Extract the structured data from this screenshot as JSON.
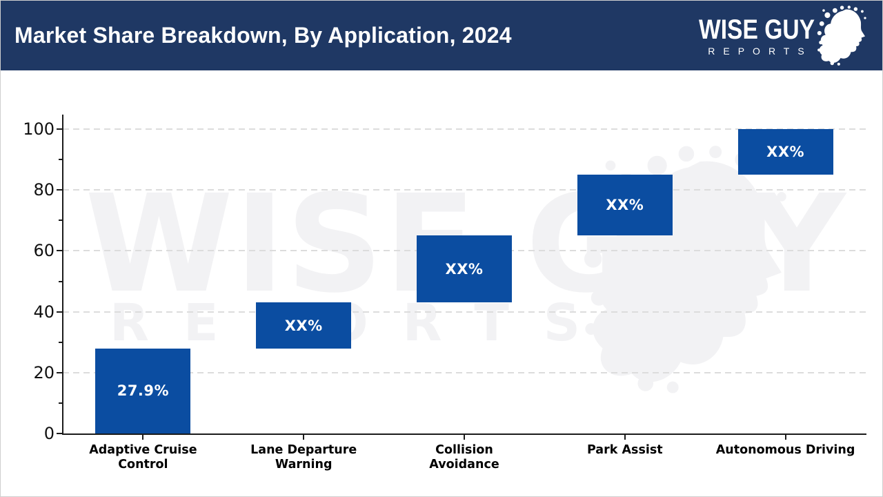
{
  "header": {
    "title": "Market Share Breakdown, By Application, 2024",
    "logo": {
      "primary": "WISE GUY",
      "secondary": "REPORTS"
    }
  },
  "watermark": {
    "primary": "WISE GUY",
    "secondary": "REPORTS",
    "head_icon": "dotted-head-profile"
  },
  "colors": {
    "header_bg": "#1f3864",
    "bar": "#0b4da1",
    "bar_label": "#ffffff",
    "gridline": "#dcdcdc",
    "axis": "#1a1a1a",
    "watermark": "#f2f2f4"
  },
  "chart_data": {
    "type": "bar",
    "subtype": "floating-waterfall",
    "title": "Market Share Breakdown, By Application, 2024",
    "categories": [
      "Adaptive Cruise\nControl",
      "Lane Departure\nWarning",
      "Collision\nAvoidance",
      "Park Assist",
      "Autonomous Driving"
    ],
    "segments": [
      {
        "start": 0,
        "end": 27.9,
        "label": "27.9%"
      },
      {
        "start": 27.9,
        "end": 43,
        "label": "XX%"
      },
      {
        "start": 43,
        "end": 65,
        "label": "XX%"
      },
      {
        "start": 65,
        "end": 85,
        "label": "XX%"
      },
      {
        "start": 85,
        "end": 100,
        "label": "XX%"
      }
    ],
    "xlabel": "",
    "ylabel": "",
    "ylim": [
      0,
      100
    ],
    "yticks": [
      0,
      20,
      40,
      60,
      80,
      100
    ],
    "minor_ytick_step": 10,
    "grid": "horizontal-dashed",
    "legend": "none"
  }
}
